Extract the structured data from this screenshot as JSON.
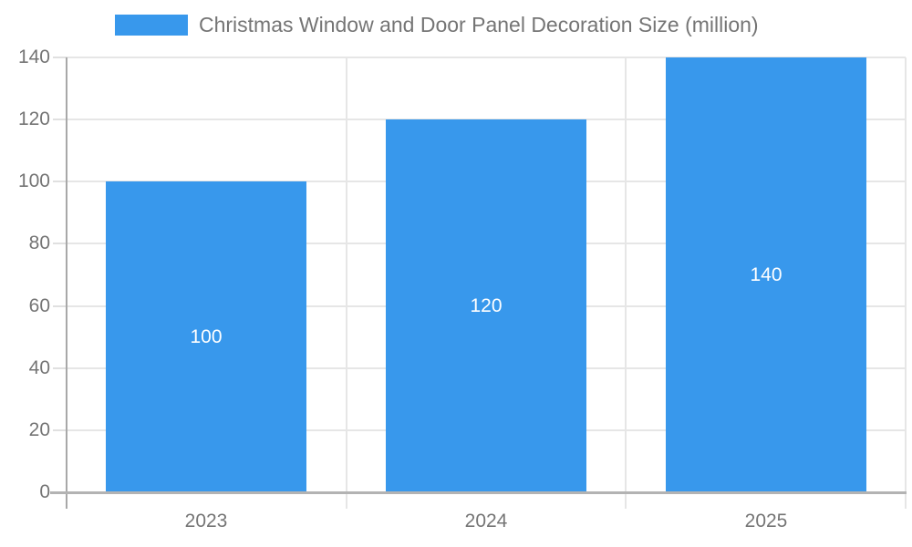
{
  "chart_data": {
    "type": "bar",
    "title": "Christmas Window and Door Panel Decoration Size (million)",
    "legend": [
      "Christmas Window and Door Panel Decoration Size (million)"
    ],
    "legend_position": "top",
    "categories": [
      "2023",
      "2024",
      "2025"
    ],
    "values": [
      100,
      120,
      140
    ],
    "bar_value_labels": [
      "100",
      "120",
      "140"
    ],
    "xlabel": "",
    "ylabel": "",
    "ylim": [
      0,
      140
    ],
    "ytick_step": 20,
    "ytick_labels": [
      "0",
      "20",
      "40",
      "60",
      "80",
      "100",
      "120",
      "140"
    ],
    "grid": true,
    "colors": {
      "bar": "#3898EC",
      "text": "#757575",
      "bar_label_text": "#ffffff",
      "gridline": "#e6e6e6",
      "tick": "#e0e0e0",
      "axis_y": "#a8a8a8",
      "axis_x": "#b3b3b3"
    }
  }
}
